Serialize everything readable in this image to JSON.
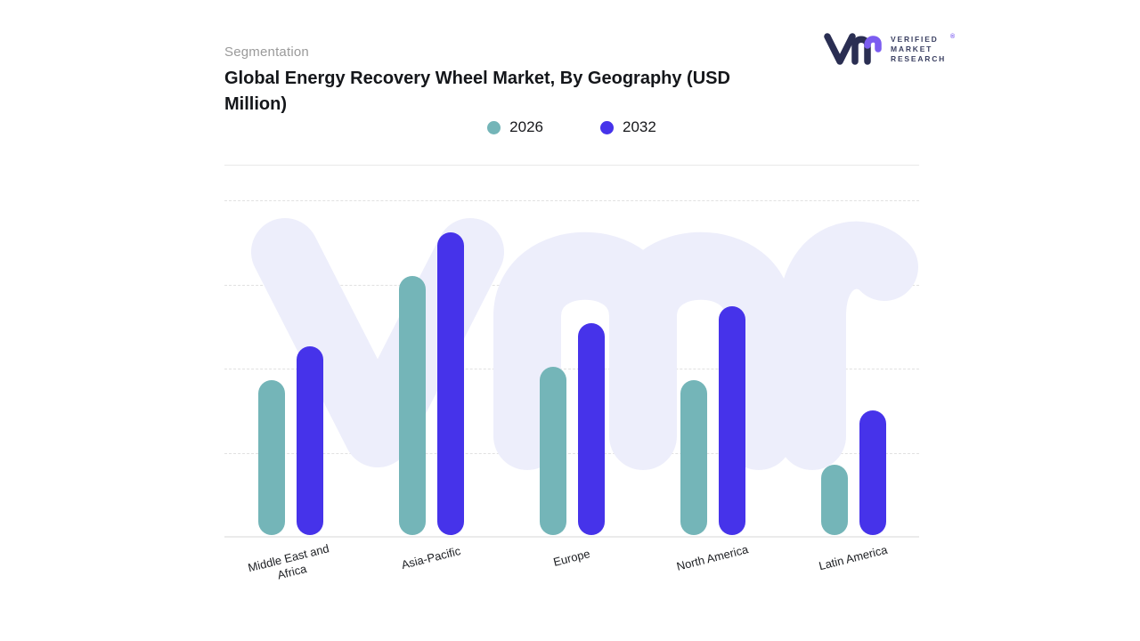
{
  "header": {
    "eyebrow": "Segmentation",
    "title": "Global Energy Recovery Wheel Market, By Geography (USD Million)"
  },
  "logo": {
    "lines": [
      "VERIFIED",
      "MARKET",
      "RESEARCH"
    ],
    "registered": "®",
    "mark_color": "#2a2e52",
    "accent_color": "#7b5cf0"
  },
  "legend": [
    {
      "label": "2026",
      "color": "#74b5b8"
    },
    {
      "label": "2032",
      "color": "#4633ea"
    }
  ],
  "chart_data": {
    "type": "bar",
    "title": "Global Energy Recovery Wheel Market, By Geography (USD Million)",
    "categories": [
      "Middle East and Africa",
      "Asia-Pacific",
      "Europe",
      "North America",
      "Latin America"
    ],
    "series": [
      {
        "name": "2026",
        "color": "#74b5b8",
        "values": [
          46,
          77,
          50,
          46,
          21
        ]
      },
      {
        "name": "2032",
        "color": "#4633ea",
        "values": [
          56,
          90,
          63,
          68,
          37
        ]
      }
    ],
    "xlabel": "",
    "ylabel": "",
    "ylim": [
      0,
      100
    ],
    "grid": "dashed-horizontal",
    "legend_position": "top-center",
    "watermark": "Vmr",
    "watermark_color": "#edeefb"
  }
}
